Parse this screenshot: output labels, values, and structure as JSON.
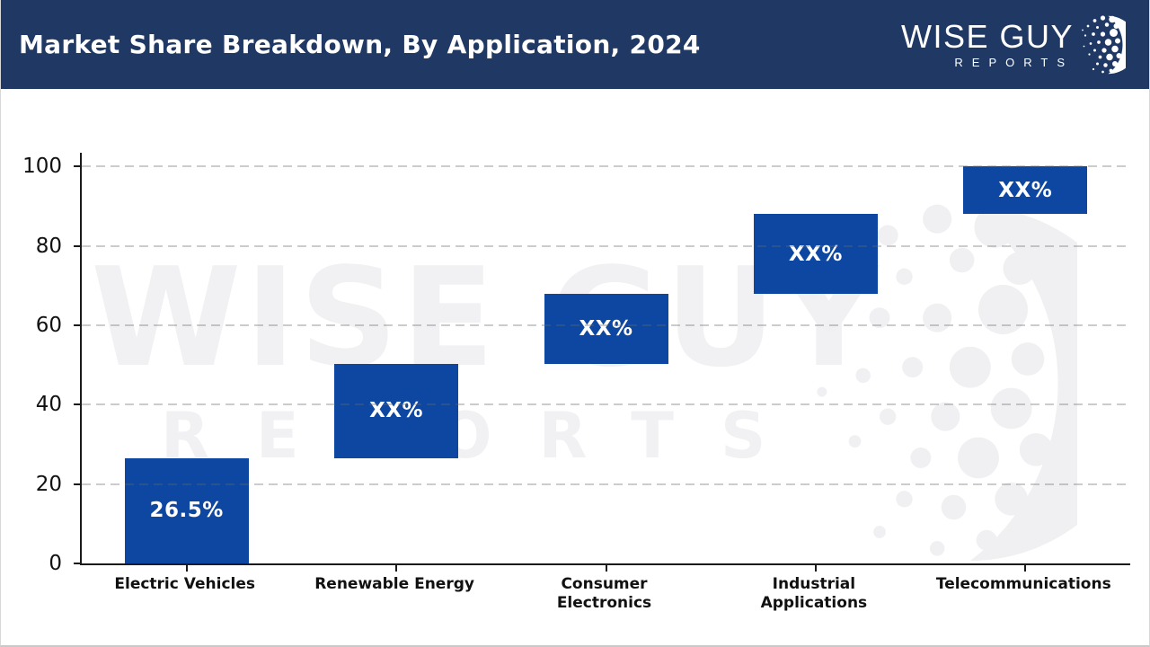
{
  "header": {
    "title": "Market Share Breakdown, By Application, 2024",
    "bg_color": "#203864",
    "logo": {
      "line1": "WISE GUY",
      "line2": "REPORTS"
    }
  },
  "watermark": {
    "line1": "WISE GUY",
    "line2": "REPORTS"
  },
  "chart_data": {
    "type": "bar",
    "subtype": "waterfall-floating-bars",
    "title": "Market Share Breakdown, By Application, 2024",
    "categories": [
      "Electric Vehicles",
      "Renewable Energy",
      "Consumer Electronics",
      "Industrial Applications",
      "Telecommunications"
    ],
    "segments": [
      {
        "category": "Electric Vehicles",
        "start": 0,
        "end": 26.5,
        "label": "26.5%"
      },
      {
        "category": "Renewable Energy",
        "start": 26.5,
        "end": 50.3,
        "label": "XX%"
      },
      {
        "category": "Consumer Electronics",
        "start": 50.3,
        "end": 67.9,
        "label": "XX%"
      },
      {
        "category": "Industrial Applications",
        "start": 67.9,
        "end": 88.1,
        "label": "XX%"
      },
      {
        "category": "Telecommunications",
        "start": 88.1,
        "end": 100,
        "label": "XX%"
      }
    ],
    "yticks": [
      0,
      20,
      40,
      60,
      80,
      100
    ],
    "ylim": [
      0,
      103
    ],
    "xlabel": "",
    "ylabel": "",
    "legend": "none",
    "grid": "horizontal-dashed",
    "bar_color": "#0d47a1",
    "grid_color": "#d4d4d4",
    "axis_color": "#1a1a1a",
    "value_label_color": "#ffffff"
  }
}
